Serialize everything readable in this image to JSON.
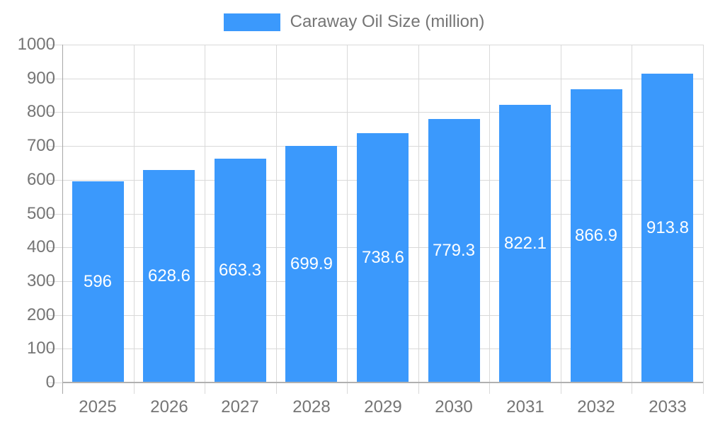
{
  "chart_data": {
    "type": "bar",
    "title": "",
    "legend": {
      "label": "Caraway Oil Size (million)",
      "position": "top"
    },
    "categories": [
      "2025",
      "2026",
      "2027",
      "2028",
      "2029",
      "2030",
      "2031",
      "2032",
      "2033"
    ],
    "series": [
      {
        "name": "Caraway Oil Size (million)",
        "values": [
          596,
          628.6,
          663.3,
          699.9,
          738.6,
          779.3,
          822.1,
          866.9,
          913.8
        ],
        "value_labels": [
          "596",
          "628.6",
          "663.3",
          "699.9",
          "738.6",
          "779.3",
          "822.1",
          "866.9",
          "913.8"
        ]
      }
    ],
    "xlabel": "",
    "ylabel": "",
    "ylim": [
      0,
      1000
    ],
    "ytick_labels": [
      "0",
      "100",
      "200",
      "300",
      "400",
      "500",
      "600",
      "700",
      "800",
      "900",
      "1000"
    ],
    "grid": true,
    "value_label_position": "center-of-bar"
  },
  "colors": {
    "bar": "#3b99fc",
    "axis_text": "#757575",
    "data_label_text": "#ffffff",
    "gridline": "#d9d9d9",
    "axis_line": "#a6a6a6",
    "baseline": "#b0b0b0",
    "background": "#ffffff"
  }
}
